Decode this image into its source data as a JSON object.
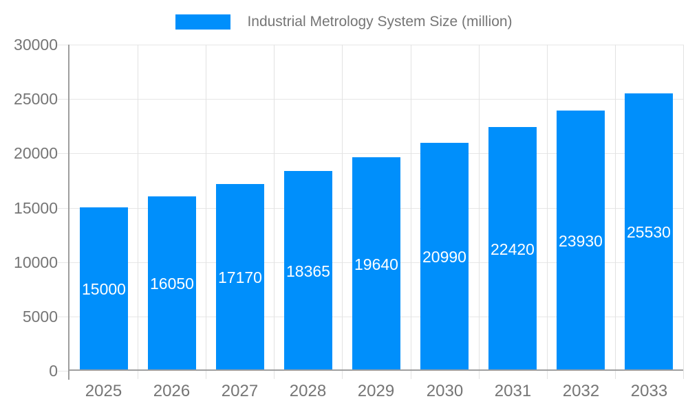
{
  "chart_data": {
    "type": "bar",
    "title": "",
    "legend": "Industrial Metrology System Size (million)",
    "legend_position": "top",
    "categories": [
      "2025",
      "2026",
      "2027",
      "2028",
      "2029",
      "2030",
      "2031",
      "2032",
      "2033"
    ],
    "values": [
      15000,
      16050,
      17170,
      18365,
      19640,
      20990,
      22420,
      23930,
      25530
    ],
    "xlabel": "",
    "ylabel": "",
    "ylim": [
      0,
      30000
    ],
    "yticks": [
      0,
      5000,
      10000,
      15000,
      20000,
      25000,
      30000
    ],
    "grid": true,
    "colors": {
      "bar": "#008FFB",
      "axis_line": "#9E9E9E",
      "h_gridline": "#E6E6E6",
      "v_gridline": "#E2E2E2",
      "axis_text": "#757575",
      "value_label_text": "#FFFFFF"
    }
  }
}
